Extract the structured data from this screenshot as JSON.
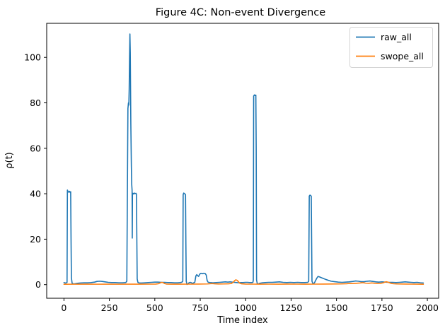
{
  "figure": {
    "background": "#ffffff",
    "text_color": "#000000",
    "spine_color": "#000000"
  },
  "chart_data": {
    "type": "line",
    "title": "Figure 4C: Non-event Divergence",
    "xlabel": "Time index",
    "ylabel": "ρ(t)",
    "xlim": [
      -95,
      2062
    ],
    "ylim": [
      -6,
      115
    ],
    "x_ticks": [
      0,
      250,
      500,
      750,
      1000,
      1250,
      1500,
      1750,
      2000
    ],
    "y_ticks": [
      0,
      20,
      40,
      60,
      80,
      100
    ],
    "grid": false,
    "legend": {
      "position": "upper right",
      "entries": [
        "raw_all",
        "swope_all"
      ]
    },
    "series": [
      {
        "name": "raw_all",
        "color": "#1f77b4",
        "points": [
          [
            0,
            0.9
          ],
          [
            8,
            0.7
          ],
          [
            14,
            0.8
          ],
          [
            17,
            1.0
          ],
          [
            19,
            41.6
          ],
          [
            22,
            41.0
          ],
          [
            26,
            40.7
          ],
          [
            30,
            41.1
          ],
          [
            34,
            40.6
          ],
          [
            37,
            40.9
          ],
          [
            39,
            20.0
          ],
          [
            41,
            3.0
          ],
          [
            45,
            0.6
          ],
          [
            52,
            0.3
          ],
          [
            62,
            0.4
          ],
          [
            75,
            0.6
          ],
          [
            90,
            0.7
          ],
          [
            110,
            0.8
          ],
          [
            130,
            0.8
          ],
          [
            150,
            0.9
          ],
          [
            168,
            1.1
          ],
          [
            182,
            1.4
          ],
          [
            196,
            1.5
          ],
          [
            210,
            1.4
          ],
          [
            226,
            1.2
          ],
          [
            244,
            1.0
          ],
          [
            262,
            0.9
          ],
          [
            282,
            0.9
          ],
          [
            302,
            0.8
          ],
          [
            322,
            0.8
          ],
          [
            340,
            0.9
          ],
          [
            346,
            1.5
          ],
          [
            349,
            40.0
          ],
          [
            352,
            77.5
          ],
          [
            355,
            80.0
          ],
          [
            357,
            79.0
          ],
          [
            359,
            86.0
          ],
          [
            361,
            100.0
          ],
          [
            363,
            110.3
          ],
          [
            365,
            102.0
          ],
          [
            368,
            71.0
          ],
          [
            371,
            52.0
          ],
          [
            373,
            44.0
          ],
          [
            375,
            41.5
          ],
          [
            376,
            20.5
          ],
          [
            377,
            39.5
          ],
          [
            380,
            40.2
          ],
          [
            384,
            39.9
          ],
          [
            388,
            40.3
          ],
          [
            392,
            40.0
          ],
          [
            396,
            40.2
          ],
          [
            399,
            39.8
          ],
          [
            401,
            21.0
          ],
          [
            403,
            2.5
          ],
          [
            407,
            1.0
          ],
          [
            414,
            0.7
          ],
          [
            428,
            0.7
          ],
          [
            446,
            0.8
          ],
          [
            464,
            0.9
          ],
          [
            482,
            1.0
          ],
          [
            500,
            1.1
          ],
          [
            518,
            1.1
          ],
          [
            536,
            1.0
          ],
          [
            554,
            1.0
          ],
          [
            572,
            0.9
          ],
          [
            590,
            0.9
          ],
          [
            608,
            0.8
          ],
          [
            626,
            0.8
          ],
          [
            642,
            0.9
          ],
          [
            650,
            1.1
          ],
          [
            654,
            1.5
          ],
          [
            656,
            39.6
          ],
          [
            659,
            40.3
          ],
          [
            663,
            40.1
          ],
          [
            666,
            39.9
          ],
          [
            669,
            39.5
          ],
          [
            671,
            18.0
          ],
          [
            673,
            1.5
          ],
          [
            677,
            0.1
          ],
          [
            682,
            0.3
          ],
          [
            688,
            0.8
          ],
          [
            695,
            1.0
          ],
          [
            702,
            0.8
          ],
          [
            708,
            0.5
          ],
          [
            714,
            0.8
          ],
          [
            720,
            1.0
          ],
          [
            726,
            3.8
          ],
          [
            731,
            4.4
          ],
          [
            736,
            3.9
          ],
          [
            741,
            3.6
          ],
          [
            747,
            4.6
          ],
          [
            754,
            5.0
          ],
          [
            762,
            4.8
          ],
          [
            769,
            5.0
          ],
          [
            777,
            4.9
          ],
          [
            783,
            4.2
          ],
          [
            788,
            1.8
          ],
          [
            794,
            1.0
          ],
          [
            805,
            0.9
          ],
          [
            820,
            0.8
          ],
          [
            838,
            0.9
          ],
          [
            856,
            1.0
          ],
          [
            872,
            1.1
          ],
          [
            888,
            1.2
          ],
          [
            902,
            1.1
          ],
          [
            914,
            1.2
          ],
          [
            926,
            1.1
          ],
          [
            938,
            1.0
          ],
          [
            950,
            0.9
          ],
          [
            962,
            0.8
          ],
          [
            974,
            0.9
          ],
          [
            986,
            0.9
          ],
          [
            998,
            1.0
          ],
          [
            1010,
            1.0
          ],
          [
            1022,
            0.9
          ],
          [
            1034,
            0.9
          ],
          [
            1040,
            1.0
          ],
          [
            1042,
            2.0
          ],
          [
            1044,
            83.0
          ],
          [
            1048,
            83.5
          ],
          [
            1052,
            83.2
          ],
          [
            1056,
            83.4
          ],
          [
            1058,
            60.0
          ],
          [
            1060,
            2.0
          ],
          [
            1064,
            0.4
          ],
          [
            1070,
            0.3
          ],
          [
            1078,
            0.6
          ],
          [
            1092,
            0.8
          ],
          [
            1108,
            0.9
          ],
          [
            1126,
            1.0
          ],
          [
            1146,
            1.0
          ],
          [
            1166,
            1.1
          ],
          [
            1186,
            1.2
          ],
          [
            1206,
            1.0
          ],
          [
            1226,
            0.9
          ],
          [
            1246,
            1.0
          ],
          [
            1266,
            0.9
          ],
          [
            1286,
            1.0
          ],
          [
            1306,
            0.9
          ],
          [
            1326,
            0.9
          ],
          [
            1342,
            1.0
          ],
          [
            1347,
            1.5
          ],
          [
            1350,
            39.0
          ],
          [
            1354,
            39.4
          ],
          [
            1358,
            39.2
          ],
          [
            1361,
            38.9
          ],
          [
            1363,
            20.0
          ],
          [
            1365,
            1.5
          ],
          [
            1369,
            0.6
          ],
          [
            1374,
            0.4
          ],
          [
            1380,
            1.0
          ],
          [
            1386,
            2.0
          ],
          [
            1392,
            2.9
          ],
          [
            1398,
            3.6
          ],
          [
            1406,
            3.4
          ],
          [
            1415,
            3.1
          ],
          [
            1425,
            2.8
          ],
          [
            1440,
            2.3
          ],
          [
            1455,
            1.9
          ],
          [
            1470,
            1.5
          ],
          [
            1490,
            1.3
          ],
          [
            1510,
            1.1
          ],
          [
            1530,
            1.0
          ],
          [
            1550,
            1.1
          ],
          [
            1570,
            1.2
          ],
          [
            1590,
            1.4
          ],
          [
            1605,
            1.6
          ],
          [
            1620,
            1.5
          ],
          [
            1636,
            1.3
          ],
          [
            1652,
            1.3
          ],
          [
            1668,
            1.5
          ],
          [
            1684,
            1.6
          ],
          [
            1700,
            1.4
          ],
          [
            1716,
            1.2
          ],
          [
            1732,
            1.1
          ],
          [
            1750,
            1.2
          ],
          [
            1768,
            1.1
          ],
          [
            1788,
            1.0
          ],
          [
            1808,
            1.0
          ],
          [
            1828,
            0.9
          ],
          [
            1846,
            1.0
          ],
          [
            1862,
            1.1
          ],
          [
            1878,
            1.2
          ],
          [
            1894,
            1.1
          ],
          [
            1910,
            1.0
          ],
          [
            1926,
            0.9
          ],
          [
            1944,
            1.0
          ],
          [
            1962,
            0.8
          ],
          [
            1978,
            0.7
          ]
        ]
      },
      {
        "name": "swope_all",
        "color": "#ff7f0e",
        "points": [
          [
            0,
            0.15
          ],
          [
            60,
            0.18
          ],
          [
            120,
            0.2
          ],
          [
            180,
            0.18
          ],
          [
            240,
            0.2
          ],
          [
            300,
            0.18
          ],
          [
            360,
            0.2
          ],
          [
            420,
            0.2
          ],
          [
            470,
            0.22
          ],
          [
            505,
            0.25
          ],
          [
            520,
            0.4
          ],
          [
            530,
            0.75
          ],
          [
            538,
            1.0
          ],
          [
            546,
            0.85
          ],
          [
            554,
            0.45
          ],
          [
            564,
            0.25
          ],
          [
            590,
            0.2
          ],
          [
            640,
            0.2
          ],
          [
            690,
            0.22
          ],
          [
            740,
            0.25
          ],
          [
            790,
            0.3
          ],
          [
            815,
            0.45
          ],
          [
            830,
            0.35
          ],
          [
            850,
            0.28
          ],
          [
            880,
            0.3
          ],
          [
            905,
            0.35
          ],
          [
            922,
            0.5
          ],
          [
            932,
            1.1
          ],
          [
            940,
            1.8
          ],
          [
            946,
            2.1
          ],
          [
            953,
            1.9
          ],
          [
            960,
            1.3
          ],
          [
            968,
            0.6
          ],
          [
            978,
            0.35
          ],
          [
            1000,
            0.25
          ],
          [
            1040,
            0.22
          ],
          [
            1080,
            0.2
          ],
          [
            1130,
            0.22
          ],
          [
            1180,
            0.2
          ],
          [
            1230,
            0.25
          ],
          [
            1280,
            0.22
          ],
          [
            1330,
            0.2
          ],
          [
            1380,
            0.22
          ],
          [
            1430,
            0.25
          ],
          [
            1480,
            0.28
          ],
          [
            1520,
            0.3
          ],
          [
            1555,
            0.4
          ],
          [
            1575,
            0.55
          ],
          [
            1592,
            0.5
          ],
          [
            1610,
            0.6
          ],
          [
            1628,
            0.7
          ],
          [
            1645,
            0.85
          ],
          [
            1660,
            0.65
          ],
          [
            1678,
            0.6
          ],
          [
            1695,
            0.75
          ],
          [
            1710,
            0.6
          ],
          [
            1726,
            0.5
          ],
          [
            1742,
            0.55
          ],
          [
            1758,
            0.8
          ],
          [
            1766,
            1.1
          ],
          [
            1774,
            1.25
          ],
          [
            1782,
            1.1
          ],
          [
            1792,
            0.8
          ],
          [
            1802,
            0.5
          ],
          [
            1815,
            0.38
          ],
          [
            1830,
            0.32
          ],
          [
            1855,
            0.28
          ],
          [
            1885,
            0.25
          ],
          [
            1915,
            0.22
          ],
          [
            1950,
            0.2
          ],
          [
            1978,
            0.15
          ]
        ]
      }
    ]
  }
}
